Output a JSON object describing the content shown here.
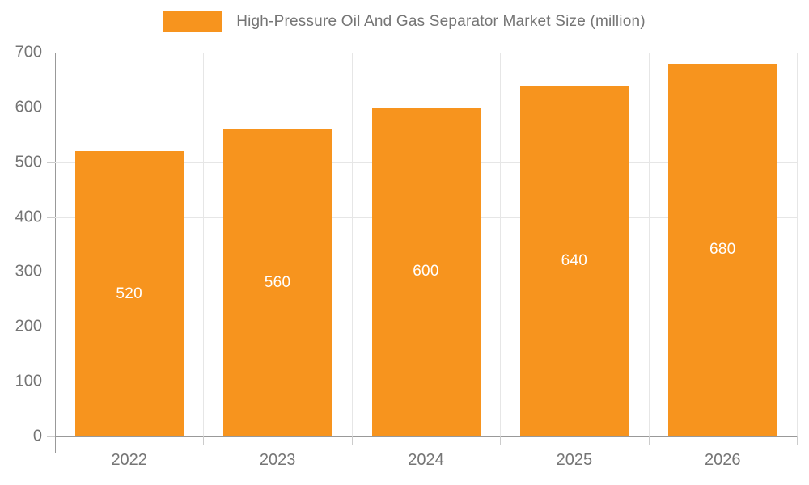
{
  "legend": {
    "label": "High-Pressure Oil And Gas Separator Market Size (million)"
  },
  "chart_data": {
    "type": "bar",
    "title": "High-Pressure Oil And Gas Separator Market Size (million)",
    "series_name": "High-Pressure Oil And Gas Separator Market Size (million)",
    "categories": [
      "2022",
      "2023",
      "2024",
      "2025",
      "2026"
    ],
    "values": [
      520,
      560,
      600,
      640,
      680
    ],
    "bar_labels": [
      "520",
      "560",
      "600",
      "640",
      "680"
    ],
    "xlabel": "",
    "ylabel": "",
    "ylim": [
      0,
      700
    ],
    "yticks": [
      0,
      100,
      200,
      300,
      400,
      500,
      600,
      700
    ],
    "grid": true,
    "legend_position": "top",
    "colors": {
      "bar": "#f7941e",
      "bar_label": "#ffffff",
      "axis_text": "#757575",
      "legend_text": "#757575",
      "axis_line": "#999999",
      "gridline": "#e6e6e6",
      "tick": "#cccccc",
      "background": "#ffffff"
    }
  }
}
